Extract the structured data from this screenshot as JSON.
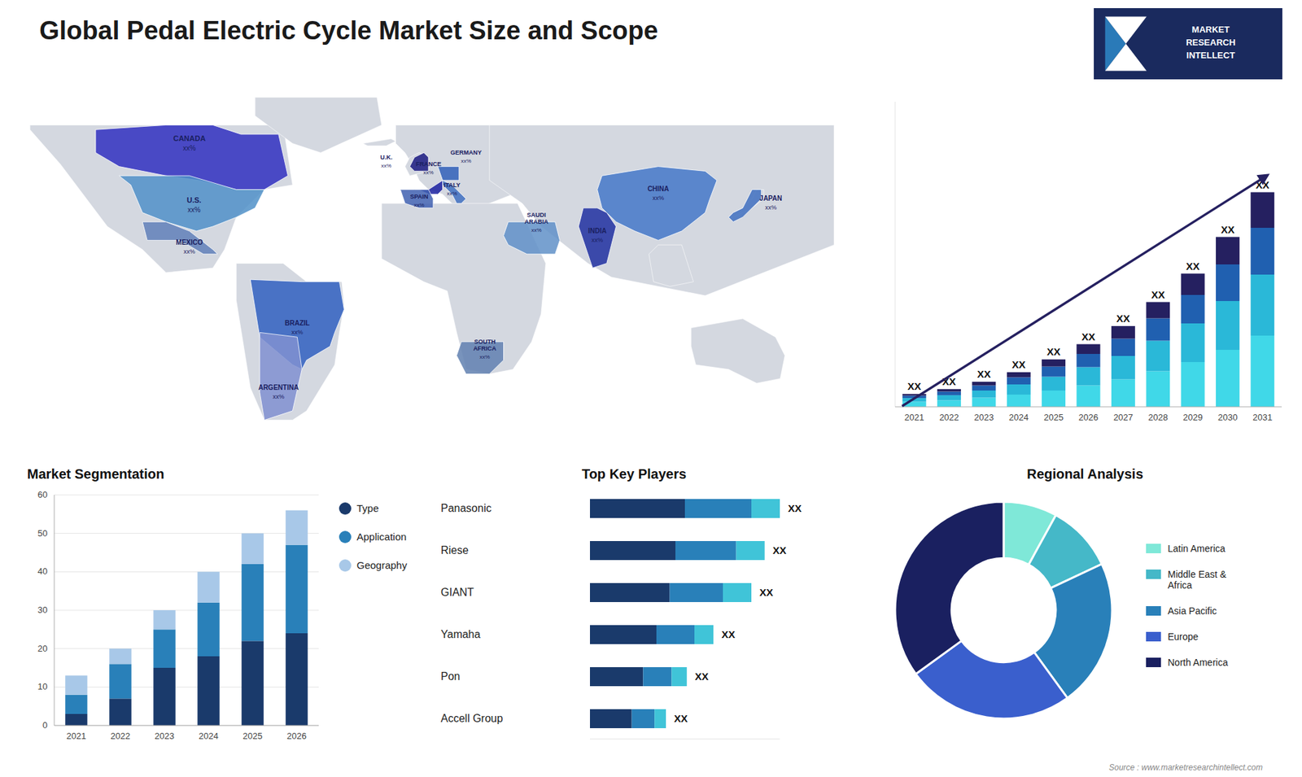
{
  "title": "Global Pedal Electric Cycle Market Size and Scope",
  "annotations": [
    "Source : www.marketresearchintellect.com",
    "MARKET\nRESEARCH\nINTELLECT"
  ],
  "chart_data": [
    {
      "type": "map",
      "categories": [
        "CANADA",
        "U.S.",
        "MEXICO",
        "BRAZIL",
        "ARGENTINA",
        "U.K.",
        "FRANCE",
        "SPAIN",
        "GERMANY",
        "ITALY",
        "SAUDI\nARABIA",
        "SOUTH\nAFRICA",
        "CHINA",
        "INDIA",
        "JAPAN"
      ],
      "annotations": [
        "xx%",
        "xx%",
        "xx%",
        "xx%",
        "xx%",
        "xx%",
        "xx%",
        "xx%",
        "xx%",
        "xx%",
        "xx%",
        "xx%",
        "xx%",
        "xx%",
        "xx%"
      ],
      "colors": [
        "#3030c0",
        "#5090c8",
        "#6080b8",
        "#3060c0",
        "#8090d0",
        "#1a1a80",
        "#1a20a0",
        "#4060b0",
        "#3060b8",
        "#4070c0",
        "#6090c8",
        "#6080b0",
        "#4478c8",
        "#2030a0",
        "#4070c0"
      ]
    },
    {
      "type": "bar",
      "stacked": true,
      "categories": [
        "2021",
        "2022",
        "2023",
        "2024",
        "2025",
        "2026",
        "2027",
        "2028",
        "2029",
        "2030",
        "2031"
      ],
      "series": [
        {
          "color": "#40d8e8",
          "values": [
            2.5,
            3.2,
            4.5,
            6.0,
            8.0,
            10.5,
            13.5,
            17.5,
            22.0,
            28.0,
            35.0
          ]
        },
        {
          "color": "#2ab8d8",
          "values": [
            1.8,
            2.5,
            3.5,
            5.0,
            6.8,
            9.0,
            11.5,
            15.0,
            19.0,
            24.0,
            30.0
          ]
        },
        {
          "color": "#2060b0",
          "values": [
            1.2,
            1.8,
            2.5,
            3.5,
            5.0,
            6.5,
            8.5,
            11.0,
            14.0,
            18.0,
            23.0
          ]
        },
        {
          "color": "#252060",
          "values": [
            0.8,
            1.2,
            1.8,
            2.5,
            3.5,
            4.8,
            6.2,
            8.0,
            10.5,
            13.5,
            17.5
          ]
        }
      ],
      "annotations": [
        "XX",
        "XX",
        "XX",
        "XX",
        "XX",
        "XX",
        "XX",
        "XX",
        "XX",
        "XX",
        "XX"
      ],
      "ylim": [
        0,
        150
      ],
      "tick_labels": "x"
    },
    {
      "type": "bar",
      "title": "Market Segmentation",
      "stacked": true,
      "categories": [
        "2021",
        "2022",
        "2023",
        "2024",
        "2025",
        "2026"
      ],
      "series": [
        {
          "name": "Type",
          "color": "#1a3a6b",
          "values": [
            3,
            7,
            15,
            18,
            22,
            24
          ]
        },
        {
          "name": "Application",
          "color": "#2980b9",
          "values": [
            5,
            9,
            10,
            14,
            20,
            23
          ]
        },
        {
          "name": "Geography",
          "color": "#a8c8e8",
          "values": [
            5,
            4,
            5,
            8,
            8,
            9
          ]
        }
      ],
      "ylim": [
        0,
        60
      ],
      "yticks": [
        0,
        10,
        20,
        30,
        40,
        50,
        60
      ],
      "grid": true,
      "legend": "right"
    },
    {
      "type": "bar",
      "title": "Top Key Players",
      "orientation": "horizontal",
      "stacked": true,
      "categories": [
        "Panasonic",
        "Riese",
        "GIANT",
        "Yamaha",
        "Pon",
        "Accell Group"
      ],
      "series": [
        {
          "color": "#1a3a6b",
          "values": [
            5.0,
            4.5,
            4.2,
            3.5,
            2.8,
            2.2
          ]
        },
        {
          "color": "#2980b9",
          "values": [
            3.5,
            3.2,
            2.8,
            2.0,
            1.5,
            1.2
          ]
        },
        {
          "color": "#40c4d8",
          "values": [
            1.5,
            1.5,
            1.5,
            1.0,
            0.8,
            0.6
          ]
        }
      ],
      "annotations": [
        "XX",
        "XX",
        "XX",
        "XX",
        "XX",
        "XX"
      ],
      "xlim": [
        0,
        10
      ],
      "tick_labels": false
    },
    {
      "type": "pie",
      "title": "Regional Analysis",
      "categories": [
        "Latin America",
        "Middle East &\nAfrica",
        "Asia Pacific",
        "Europe",
        "North America"
      ],
      "values": [
        8,
        10,
        22,
        25,
        35
      ],
      "colors": [
        "#7fe8d8",
        "#45b8c8",
        "#2980b9",
        "#3a5fcd",
        "#1a2060"
      ],
      "legend": "right"
    }
  ]
}
